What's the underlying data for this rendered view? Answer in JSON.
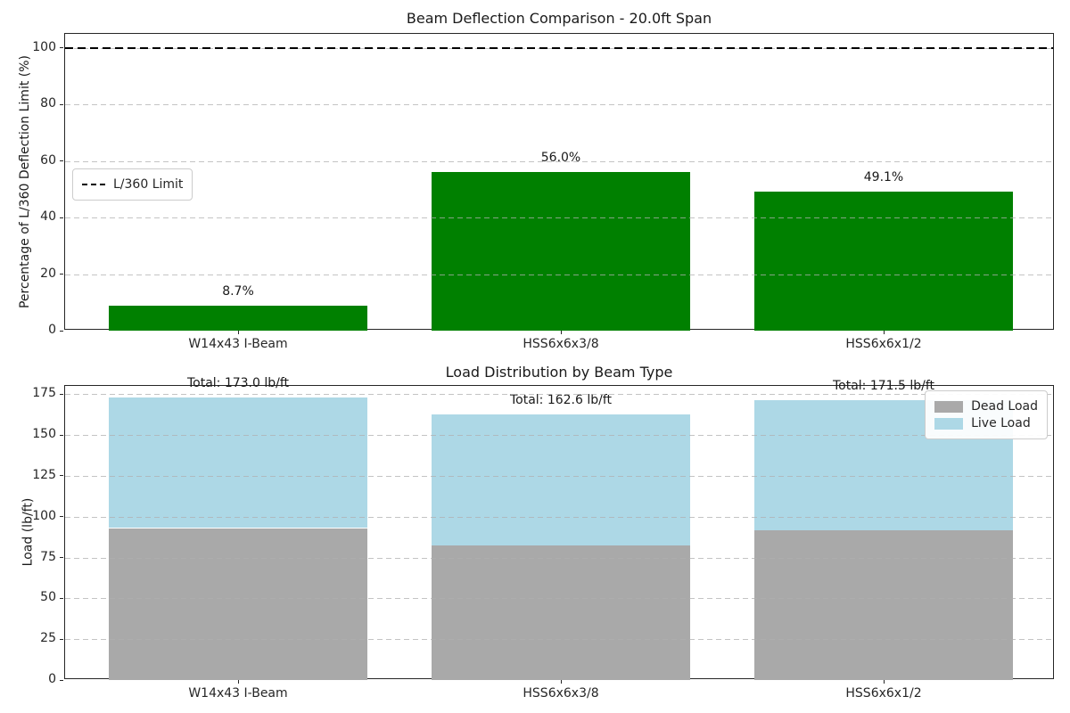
{
  "figure": {
    "background": "#ffffff"
  },
  "chart_data": [
    {
      "type": "bar",
      "title": "Beam Deflection Comparison - 20.0ft Span",
      "xlabel": "",
      "ylabel": "Percentage of L/360 Deflection Limit (%)",
      "categories": [
        "W14x43 I-Beam",
        "HSS6x6x3/8",
        "HSS6x6x1/2"
      ],
      "values": [
        8.7,
        56.0,
        49.1
      ],
      "bar_labels": [
        "8.7%",
        "56.0%",
        "49.1%"
      ],
      "bar_color": "#008000",
      "yticks": [
        0,
        20,
        40,
        60,
        80,
        100
      ],
      "ylim": [
        0,
        105
      ],
      "grid": "y-dashed",
      "reference_line": {
        "value": 100,
        "label": "L/360 Limit",
        "color": "#000000",
        "style": "dashed"
      },
      "legend": {
        "position": "center-left",
        "entries": [
          {
            "label": "L/360 Limit",
            "swatch": "dashed-line",
            "color": "#000000"
          }
        ]
      }
    },
    {
      "type": "stacked-bar",
      "title": "Load Distribution by Beam Type",
      "xlabel": "",
      "ylabel": "Load (lb/ft)",
      "categories": [
        "W14x43 I-Beam",
        "HSS6x6x3/8",
        "HSS6x6x1/2"
      ],
      "series": [
        {
          "name": "Dead Load",
          "color": "#a9a9a9",
          "values": [
            93.0,
            82.6,
            91.5
          ]
        },
        {
          "name": "Live Load",
          "color": "#add8e6",
          "values": [
            80.0,
            80.0,
            80.0
          ]
        }
      ],
      "totals": [
        173.0,
        162.6,
        171.5
      ],
      "total_labels": [
        "Total: 173.0 lb/ft",
        "Total: 162.6 lb/ft",
        "Total: 171.5 lb/ft"
      ],
      "yticks": [
        0,
        25,
        50,
        75,
        100,
        125,
        150,
        175
      ],
      "ylim": [
        0,
        180
      ],
      "grid": "y-dashed",
      "legend": {
        "position": "upper-right",
        "entries": [
          {
            "label": "Dead Load",
            "swatch": "patch",
            "color": "#a9a9a9"
          },
          {
            "label": "Live Load",
            "swatch": "patch",
            "color": "#add8e6"
          }
        ]
      }
    }
  ]
}
